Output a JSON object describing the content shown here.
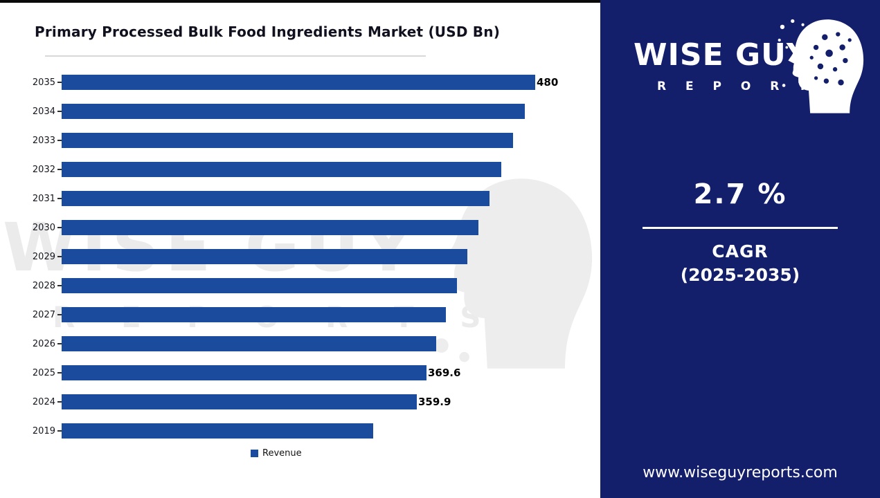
{
  "title": "Primary Processed Bulk Food Ingredients Market (USD Bn)",
  "chart_data": {
    "type": "bar",
    "orientation": "horizontal",
    "title": "Primary Processed Bulk Food Ingredients Market (USD Bn)",
    "categories": [
      "2035",
      "2034",
      "2033",
      "2032",
      "2031",
      "2030",
      "2029",
      "2028",
      "2027",
      "2026",
      "2025",
      "2024",
      "2019"
    ],
    "values": [
      480,
      469.7,
      457.4,
      445.4,
      433.7,
      422.3,
      411.2,
      400.4,
      389.8,
      379.6,
      369.6,
      359.9,
      316
    ],
    "value_labels": [
      "480",
      "",
      "",
      "",
      "",
      "",
      "",
      "",
      "",
      "",
      "369.6",
      "359.9",
      ""
    ],
    "series_name": "Revenue",
    "xlim": [
      0,
      480
    ],
    "bar_color": "#1a4b9c",
    "grid": false,
    "legend_position": "bottom"
  },
  "watermark": {
    "line1": "WISE GUY",
    "line2": "R E P O R T S"
  },
  "sidebar": {
    "logo_line1": "WISE GUY",
    "logo_line2": "R E P O R T S",
    "cagr_value": "2.7 %",
    "cagr_title": "CAGR",
    "cagr_range": "(2025-2035)",
    "website": "www.wiseguyreports.com",
    "bg_color": "#141f6b"
  }
}
